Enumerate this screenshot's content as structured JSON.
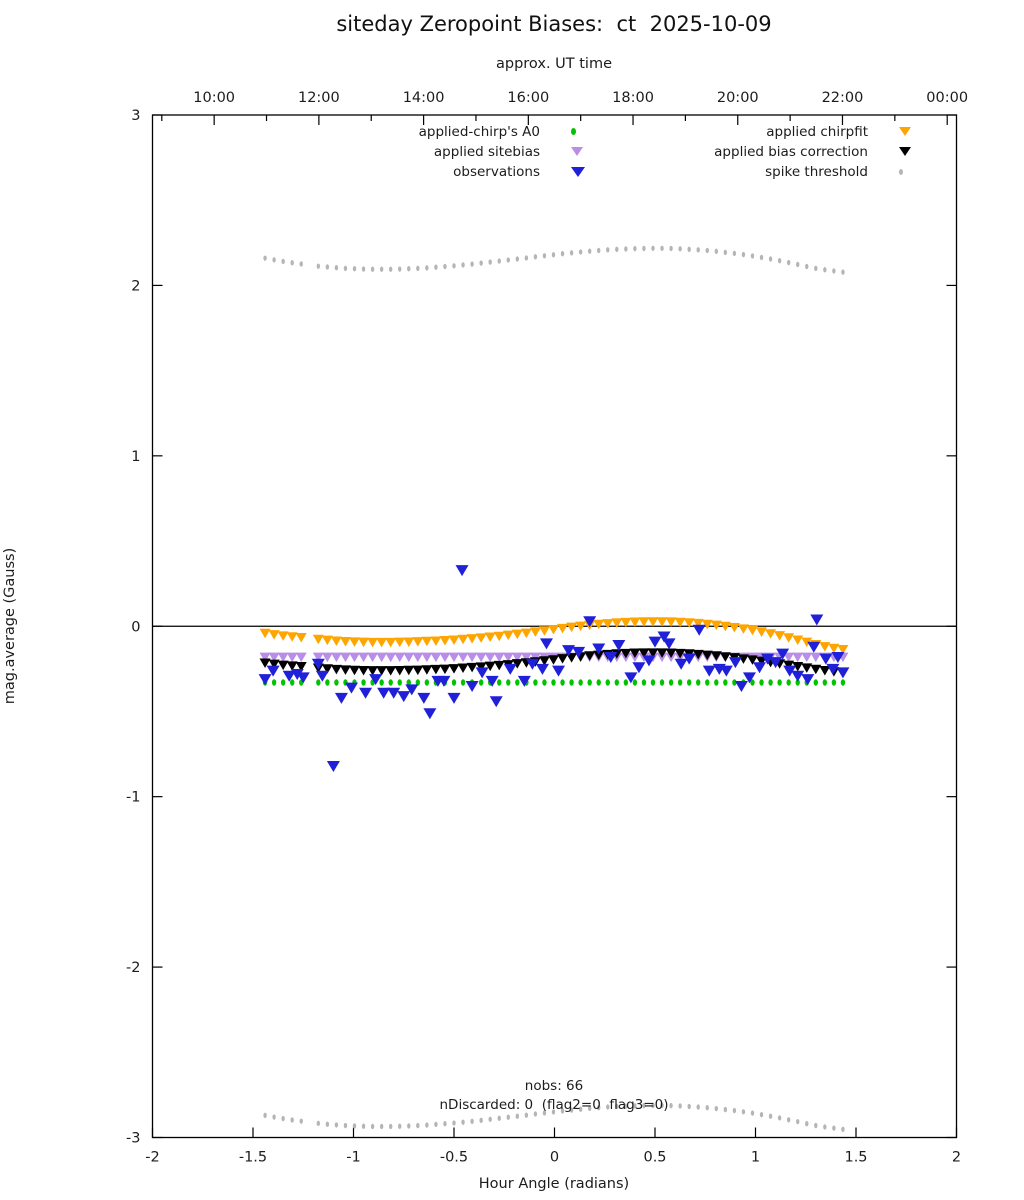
{
  "chart": {
    "title": "siteday Zeropoint Biases:  ct  2025-10-09",
    "top_axis": {
      "label": "approx. UT time",
      "tick_labels": [
        "10:00",
        "12:00",
        "14:00",
        "16:00",
        "18:00",
        "20:00",
        "22:00",
        "00:00"
      ],
      "tick_hours": [
        10,
        12,
        14,
        16,
        18,
        20,
        22,
        24
      ],
      "minor_tick_hours": [
        9,
        11,
        13,
        15,
        17,
        19,
        21,
        23
      ]
    },
    "bottom_axis": {
      "label": "Hour Angle (radians)",
      "tick_labels": [
        "-2",
        "-1.5",
        "-1",
        "-0.5",
        "0",
        "0.5",
        "1",
        "1.5",
        "2"
      ]
    },
    "left_axis": {
      "label": "mag.average (Gauss)",
      "tick_labels": [
        "-3",
        "-2",
        "-1",
        "0",
        "1",
        "2",
        "3"
      ]
    },
    "annotations": {
      "nobs": "nobs: 66",
      "ndiscarded": "nDiscarded: 0  (flag2=0  flag3=0)"
    },
    "text_color": "#1c1c1c",
    "axis_color": "#000000"
  },
  "chart_data": {
    "type": "scatter",
    "x_range": [
      -2,
      2
    ],
    "y_range": [
      -3,
      3
    ],
    "grid": false,
    "legend_position": "top-inside-two-columns",
    "ha_grid": [
      -1.44,
      -1.395,
      -1.35,
      -1.305,
      -1.26,
      -1.175,
      -1.13,
      -1.085,
      -1.04,
      -0.995,
      -0.95,
      -0.905,
      -0.86,
      -0.815,
      -0.77,
      -0.725,
      -0.68,
      -0.635,
      -0.59,
      -0.545,
      -0.5,
      -0.455,
      -0.41,
      -0.365,
      -0.32,
      -0.275,
      -0.23,
      -0.185,
      -0.14,
      -0.095,
      -0.05,
      -0.005,
      0.04,
      0.085,
      0.13,
      0.175,
      0.22,
      0.265,
      0.31,
      0.355,
      0.4,
      0.445,
      0.49,
      0.535,
      0.58,
      0.625,
      0.67,
      0.715,
      0.76,
      0.805,
      0.85,
      0.895,
      0.94,
      0.985,
      1.03,
      1.075,
      1.12,
      1.165,
      1.21,
      1.255,
      1.3,
      1.345,
      1.39,
      1.435
    ],
    "series": [
      {
        "id": "chirp_a0",
        "label": "applied-chirp's A0",
        "marker": "dot",
        "color": "#00c400",
        "value": -0.33
      },
      {
        "id": "chirpfit",
        "label": "applied chirpfit",
        "marker": "triangle-down",
        "color": "#ffa500",
        "values": [
          -0.04,
          -0.048,
          -0.055,
          -0.06,
          -0.065,
          -0.075,
          -0.08,
          -0.085,
          -0.088,
          -0.09,
          -0.092,
          -0.093,
          -0.093,
          -0.093,
          -0.092,
          -0.091,
          -0.089,
          -0.087,
          -0.085,
          -0.082,
          -0.079,
          -0.075,
          -0.071,
          -0.067,
          -0.062,
          -0.057,
          -0.051,
          -0.045,
          -0.039,
          -0.032,
          -0.025,
          -0.018,
          -0.011,
          -0.004,
          0.002,
          0.008,
          0.013,
          0.017,
          0.021,
          0.024,
          0.026,
          0.028,
          0.028,
          0.028,
          0.027,
          0.025,
          0.022,
          0.018,
          0.013,
          0.008,
          0.001,
          -0.006,
          -0.014,
          -0.023,
          -0.032,
          -0.043,
          -0.054,
          -0.066,
          -0.079,
          -0.092,
          -0.106,
          -0.118,
          -0.128,
          -0.135
        ]
      },
      {
        "id": "sitebias",
        "label": "applied sitebias",
        "marker": "triangle-down",
        "color": "#b98ee8",
        "value": -0.18
      },
      {
        "id": "bias_correction",
        "label": "applied bias correction",
        "marker": "triangle-down",
        "color": "#000000",
        "values": [
          -0.214,
          -0.221,
          -0.227,
          -0.231,
          -0.235,
          -0.244,
          -0.248,
          -0.252,
          -0.255,
          -0.257,
          -0.258,
          -0.259,
          -0.259,
          -0.259,
          -0.258,
          -0.257,
          -0.256,
          -0.254,
          -0.252,
          -0.25,
          -0.247,
          -0.244,
          -0.24,
          -0.237,
          -0.233,
          -0.228,
          -0.224,
          -0.218,
          -0.213,
          -0.207,
          -0.201,
          -0.195,
          -0.189,
          -0.183,
          -0.178,
          -0.172,
          -0.168,
          -0.164,
          -0.16,
          -0.158,
          -0.156,
          -0.155,
          -0.155,
          -0.155,
          -0.156,
          -0.158,
          -0.16,
          -0.164,
          -0.168,
          -0.172,
          -0.178,
          -0.183,
          -0.19,
          -0.196,
          -0.203,
          -0.211,
          -0.219,
          -0.227,
          -0.235,
          -0.243,
          -0.251,
          -0.258,
          -0.265,
          -0.272
        ]
      },
      {
        "id": "observations",
        "label": "observations",
        "marker": "triangle-down",
        "color": "#2020d8",
        "points": [
          [
            -1.44,
            -0.31
          ],
          [
            -1.4,
            -0.26
          ],
          [
            -1.32,
            -0.29
          ],
          [
            -1.28,
            -0.28
          ],
          [
            -1.25,
            -0.3
          ],
          [
            -1.175,
            -0.22
          ],
          [
            -1.155,
            -0.29
          ],
          [
            -1.1,
            -0.82
          ],
          [
            -1.06,
            -0.42
          ],
          [
            -1.01,
            -0.36
          ],
          [
            -0.94,
            -0.39
          ],
          [
            -0.89,
            -0.31
          ],
          [
            -0.85,
            -0.39
          ],
          [
            -0.8,
            -0.39
          ],
          [
            -0.75,
            -0.41
          ],
          [
            -0.71,
            -0.37
          ],
          [
            -0.65,
            -0.42
          ],
          [
            -0.62,
            -0.51
          ],
          [
            -0.58,
            -0.32
          ],
          [
            -0.55,
            -0.32
          ],
          [
            -0.5,
            -0.42
          ],
          [
            -0.46,
            0.33
          ],
          [
            -0.41,
            -0.35
          ],
          [
            -0.36,
            -0.27
          ],
          [
            -0.31,
            -0.32
          ],
          [
            -0.29,
            -0.44
          ],
          [
            -0.22,
            -0.25
          ],
          [
            -0.15,
            -0.32
          ],
          [
            -0.11,
            -0.22
          ],
          [
            -0.06,
            -0.25
          ],
          [
            -0.04,
            -0.1
          ],
          [
            0.02,
            -0.26
          ],
          [
            0.07,
            -0.14
          ],
          [
            0.12,
            -0.15
          ],
          [
            0.175,
            0.03
          ],
          [
            0.22,
            -0.13
          ],
          [
            0.28,
            -0.18
          ],
          [
            0.32,
            -0.11
          ],
          [
            0.38,
            -0.3
          ],
          [
            0.42,
            -0.24
          ],
          [
            0.47,
            -0.2
          ],
          [
            0.5,
            -0.09
          ],
          [
            0.545,
            -0.06
          ],
          [
            0.57,
            -0.1
          ],
          [
            0.63,
            -0.22
          ],
          [
            0.67,
            -0.19
          ],
          [
            0.72,
            -0.02
          ],
          [
            0.77,
            -0.26
          ],
          [
            0.82,
            -0.25
          ],
          [
            0.855,
            -0.26
          ],
          [
            0.9,
            -0.21
          ],
          [
            0.93,
            -0.35
          ],
          [
            0.97,
            -0.3
          ],
          [
            1.02,
            -0.24
          ],
          [
            1.06,
            -0.19
          ],
          [
            1.1,
            -0.21
          ],
          [
            1.135,
            -0.16
          ],
          [
            1.17,
            -0.26
          ],
          [
            1.21,
            -0.29
          ],
          [
            1.26,
            -0.31
          ],
          [
            1.29,
            -0.12
          ],
          [
            1.305,
            0.04
          ],
          [
            1.35,
            -0.19
          ],
          [
            1.385,
            -0.25
          ],
          [
            1.41,
            -0.18
          ],
          [
            1.435,
            -0.27
          ]
        ]
      },
      {
        "id": "spike_threshold",
        "label": "spike threshold",
        "marker": "small-dot",
        "color": "#b5b5b5",
        "values_upper": [
          2.16,
          2.15,
          2.141,
          2.133,
          2.126,
          2.113,
          2.108,
          2.104,
          2.1,
          2.098,
          2.096,
          2.095,
          2.095,
          2.095,
          2.096,
          2.098,
          2.1,
          2.103,
          2.107,
          2.111,
          2.115,
          2.12,
          2.125,
          2.131,
          2.137,
          2.143,
          2.149,
          2.155,
          2.161,
          2.168,
          2.174,
          2.18,
          2.186,
          2.191,
          2.196,
          2.201,
          2.205,
          2.209,
          2.212,
          2.214,
          2.216,
          2.217,
          2.218,
          2.218,
          2.217,
          2.215,
          2.212,
          2.209,
          2.205,
          2.2,
          2.194,
          2.188,
          2.181,
          2.173,
          2.164,
          2.155,
          2.145,
          2.134,
          2.123,
          2.111,
          2.1,
          2.092,
          2.085,
          2.078
        ],
        "values_lower": [
          -2.87,
          -2.88,
          -2.889,
          -2.897,
          -2.904,
          -2.917,
          -2.922,
          -2.926,
          -2.93,
          -2.932,
          -2.934,
          -2.935,
          -2.935,
          -2.935,
          -2.934,
          -2.932,
          -2.93,
          -2.927,
          -2.923,
          -2.919,
          -2.915,
          -2.91,
          -2.905,
          -2.899,
          -2.893,
          -2.887,
          -2.881,
          -2.875,
          -2.869,
          -2.862,
          -2.856,
          -2.85,
          -2.844,
          -2.839,
          -2.834,
          -2.829,
          -2.825,
          -2.821,
          -2.818,
          -2.816,
          -2.814,
          -2.813,
          -2.812,
          -2.812,
          -2.813,
          -2.815,
          -2.818,
          -2.821,
          -2.825,
          -2.83,
          -2.836,
          -2.842,
          -2.849,
          -2.857,
          -2.866,
          -2.875,
          -2.885,
          -2.896,
          -2.907,
          -2.919,
          -2.93,
          -2.938,
          -2.945,
          -2.952
        ]
      }
    ]
  }
}
